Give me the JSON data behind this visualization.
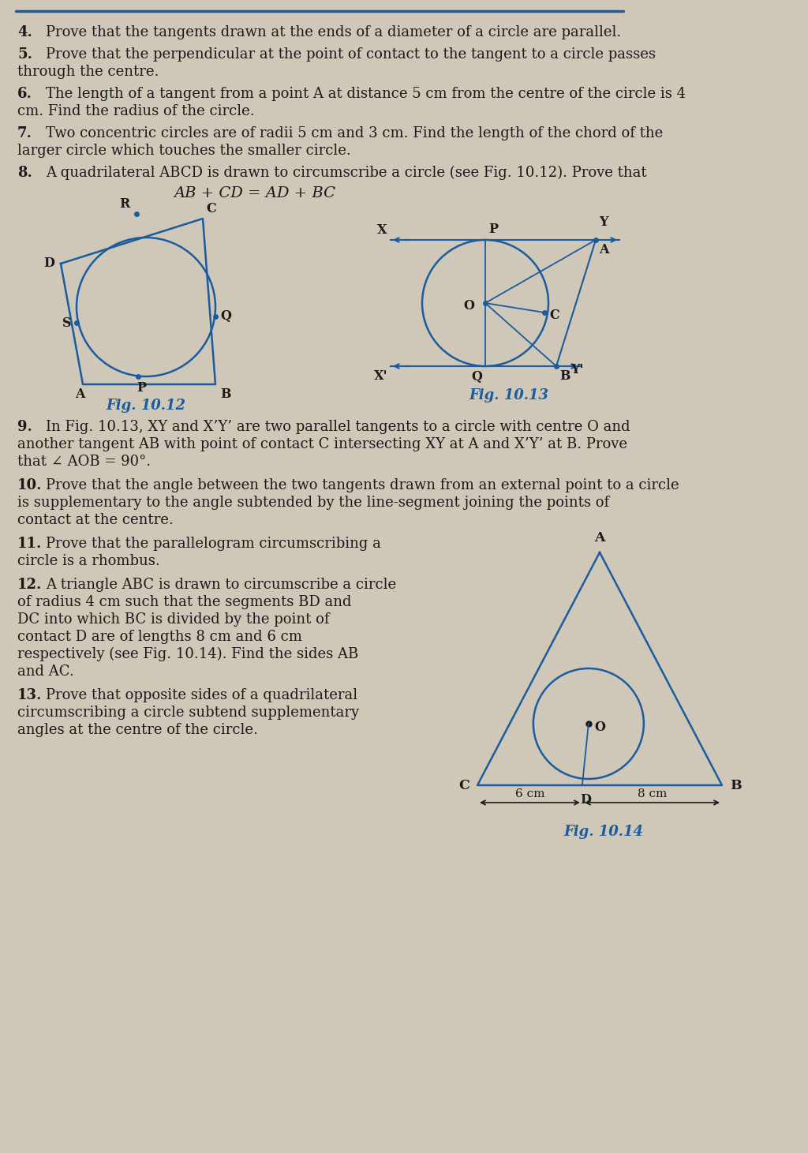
{
  "bg_color": "#cfc8b8",
  "text_color": "#1a1a1a",
  "blue_color": "#1a5c9e",
  "fig_label_color": "#1a5c9e",
  "top_line_color": "#2060a0",
  "items": [
    {
      "num": "4.",
      "text": "Prove that the tangents drawn at the ends of a diameter of a circle are parallel."
    },
    {
      "num": "5.",
      "text": "Prove that the perpendicular at the point of contact to the tangent to a circle passes\nthrough the centre."
    },
    {
      "num": "6.",
      "text": "The length of a tangent from a point A at distance 5 cm from the centre of the circle is 4\ncm. Find the radius of the circle."
    },
    {
      "num": "7.",
      "text": "Two concentric circles are of radii 5 cm and 3 cm. Find the length of the chord of the\nlarger circle which touches the smaller circle."
    },
    {
      "num": "8.",
      "text": "A quadrilateral ABCD is drawn to circumscribe a circle (see Fig. 10.12). Prove that"
    }
  ],
  "eq8": "AB + CD = AD + BC",
  "item9": {
    "num": "9.",
    "text": "In Fig. 10.13, XY and X’Y’ are two parallel tangents to a circle with centre O and\nanother tangent AB with point of contact C intersecting XY at A and X’Y’ at B. Prove\nthat ∠ AOB = 90°."
  },
  "item10": {
    "num": "10.",
    "text": "Prove that the angle between the two tangents drawn from an external point to a circle\nis supplementary to the angle subtended by the line-segment joining the points of\ncontact at the centre."
  },
  "item11": {
    "num": "11.",
    "text": "Prove that the parallelogram circumscribing a\ncircle is a rhombus."
  },
  "item12": {
    "num": "12.",
    "text": "A triangle ABC is drawn to circumscribe a circle\nof radius 4 cm such that the segments BD and\nDC into which BC is divided by the point of\ncontact D are of lengths 8 cm and 6 cm\nrespectively (see Fig. 10.14). Find the sides AB\nand AC."
  },
  "item13": {
    "num": "13.",
    "text": "Prove that opposite sides of a quadrilateral\ncircumscribing a circle subtend supplementary\nangles at the centre of the circle."
  },
  "fig12_label": "Fig. 10.12",
  "fig13_label": "Fig. 10.13",
  "fig14_label": "Fig. 10.14"
}
